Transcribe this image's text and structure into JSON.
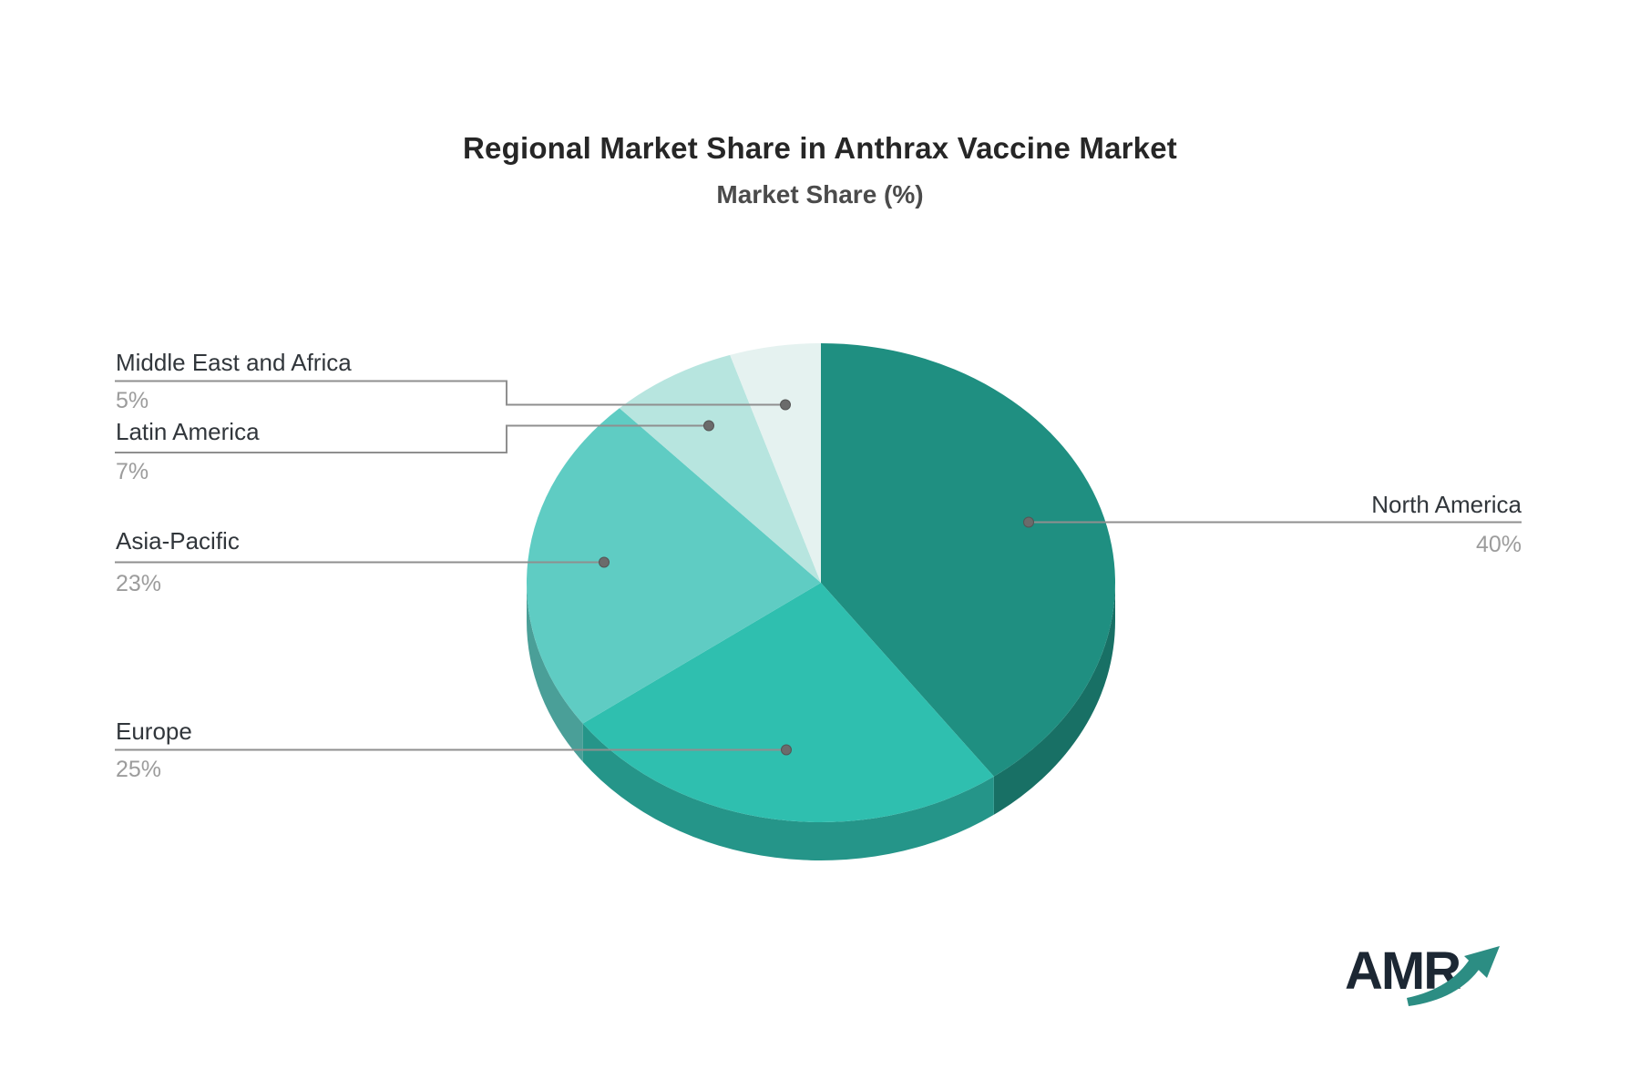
{
  "page": {
    "background": "#ffffff"
  },
  "title": "Regional Market Share in Anthrax Vaccine Market",
  "subtitle": "Market Share (%)",
  "logo": {
    "text": "AMR",
    "text_color": "#1c2733",
    "arrow_color": "#2c8d83"
  },
  "connector_color": "#8f8f8f",
  "label_color": "#31363b",
  "value_color": "#9c9c9c",
  "chart_data": {
    "type": "pie",
    "title": "Regional Market Share in Anthrax Vaccine Market",
    "subtitle": "Market Share (%)",
    "unit": "%",
    "effect": "3d",
    "start_angle_deg": 0,
    "direction": "clockwise",
    "legend_position": "callout-labels",
    "slices": [
      {
        "label": "North America",
        "value": 40,
        "display": "40%",
        "color": "#1f8f81",
        "side": "right"
      },
      {
        "label": "Europe",
        "value": 25,
        "display": "25%",
        "color": "#2fbfaf",
        "side": "left"
      },
      {
        "label": "Asia-Pacific",
        "value": 23,
        "display": "23%",
        "color": "#5fccc3",
        "side": "left"
      },
      {
        "label": "Latin America",
        "value": 7,
        "display": "7%",
        "color": "#b7e5df",
        "side": "left"
      },
      {
        "label": "Middle East and Africa",
        "value": 5,
        "display": "5%",
        "color": "#e5f2f0",
        "side": "left"
      }
    ]
  }
}
